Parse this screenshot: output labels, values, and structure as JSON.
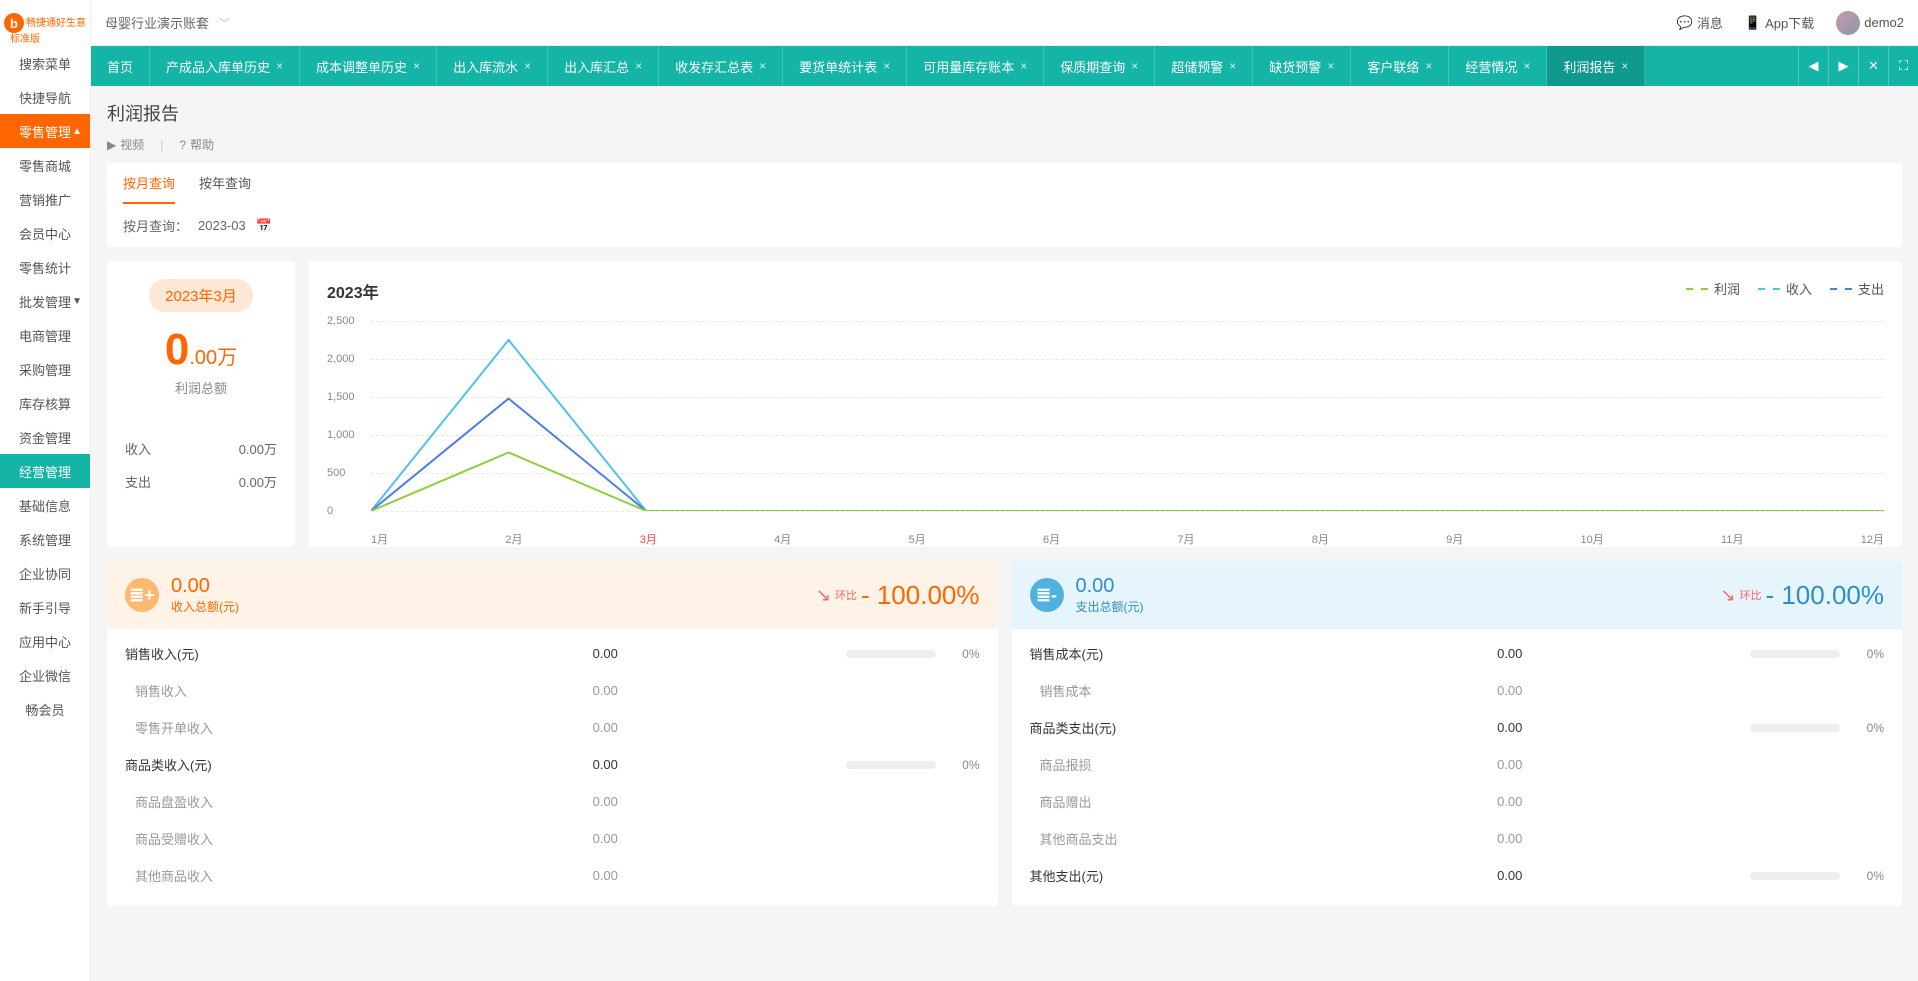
{
  "app": {
    "logo_text": "畅捷通好生意",
    "logo_edition": "标准版",
    "account_selector": "母婴行业演示账套"
  },
  "topbar": {
    "message": "消息",
    "app_download": "App下载",
    "username": "demo2"
  },
  "sidebar": {
    "items": [
      {
        "label": "搜索菜单",
        "name": "side-search"
      },
      {
        "label": "快捷导航",
        "name": "side-quick-nav"
      },
      {
        "label": "零售管理",
        "name": "side-retail",
        "active": true,
        "caret": "▲"
      },
      {
        "label": "零售商城",
        "name": "side-retail-mall",
        "indent": true
      },
      {
        "label": "营销推广",
        "name": "side-marketing",
        "indent": true
      },
      {
        "label": "会员中心",
        "name": "side-member",
        "indent": true
      },
      {
        "label": "零售统计",
        "name": "side-retail-stats",
        "indent": true
      },
      {
        "label": "批发管理",
        "name": "side-wholesale",
        "caret": "▼"
      },
      {
        "label": "电商管理",
        "name": "side-ecommerce"
      },
      {
        "label": "采购管理",
        "name": "side-purchase"
      },
      {
        "label": "库存核算",
        "name": "side-inventory"
      },
      {
        "label": "资金管理",
        "name": "side-funds"
      },
      {
        "label": "经营管理",
        "name": "side-ops",
        "selected": true
      },
      {
        "label": "基础信息",
        "name": "side-basics"
      },
      {
        "label": "系统管理",
        "name": "side-system"
      },
      {
        "label": "企业协同",
        "name": "side-collab"
      },
      {
        "label": "新手引导",
        "name": "side-guide"
      },
      {
        "label": "应用中心",
        "name": "side-apps"
      },
      {
        "label": "企业微信",
        "name": "side-wechat"
      },
      {
        "label": "畅会员",
        "name": "side-vip"
      }
    ]
  },
  "tabs": [
    {
      "label": "首页",
      "closable": false
    },
    {
      "label": "产成品入库单历史",
      "closable": true
    },
    {
      "label": "成本调整单历史",
      "closable": true
    },
    {
      "label": "出入库流水",
      "closable": true
    },
    {
      "label": "出入库汇总",
      "closable": true
    },
    {
      "label": "收发存汇总表",
      "closable": true
    },
    {
      "label": "要货单统计表",
      "closable": true
    },
    {
      "label": "可用量库存账本",
      "closable": true
    },
    {
      "label": "保质期查询",
      "closable": true
    },
    {
      "label": "超储预警",
      "closable": true
    },
    {
      "label": "缺货预警",
      "closable": true
    },
    {
      "label": "客户联络",
      "closable": true
    },
    {
      "label": "经营情况",
      "closable": true
    },
    {
      "label": "利润报告",
      "closable": true,
      "active": true
    }
  ],
  "page": {
    "title": "利润报告",
    "help_video": "视频",
    "help_text": "帮助",
    "filter_tabs": {
      "by_month": "按月查询",
      "by_year": "按年查询"
    },
    "filter_label": "按月查询：",
    "filter_value": "2023-03"
  },
  "summary": {
    "period_label": "2023年3月",
    "big_int": "0",
    "big_dec": ".00",
    "big_unit": "万",
    "big_label": "利润总额",
    "income_label": "收入",
    "income_val": "0.00万",
    "expense_label": "支出",
    "expense_val": "0.00万"
  },
  "chart": {
    "title": "2023年",
    "legend": {
      "profit": "利润",
      "income": "收入",
      "expense": "支出"
    },
    "colors": {
      "profit": "#8fce3f",
      "income": "#4fc2e8",
      "expense": "#4f7de8"
    },
    "y": {
      "min": 0,
      "max": 2500,
      "ticks": [
        "0",
        "500",
        "1,000",
        "1,500",
        "2,000",
        "2,500"
      ]
    },
    "x_labels": [
      "1月",
      "2月",
      "3月",
      "4月",
      "5月",
      "6月",
      "7月",
      "8月",
      "9月",
      "10月",
      "11月",
      "12月"
    ],
    "current_x_index": 2,
    "series": {
      "income": [
        0,
        2250,
        0,
        0,
        0,
        0,
        0,
        0,
        0,
        0,
        0,
        0
      ],
      "expense": [
        0,
        1480,
        0,
        0,
        0,
        0,
        0,
        0,
        0,
        0,
        0,
        0
      ],
      "profit": [
        0,
        770,
        0,
        0,
        0,
        0,
        0,
        0,
        0,
        0,
        0,
        0
      ]
    }
  },
  "breakdown": {
    "income": {
      "value": "0.00",
      "label": "收入总额(元)",
      "trend_label": "环比",
      "trend_pct": "- 100.00%",
      "rows": [
        {
          "label": "销售收入(元)",
          "val": "0.00",
          "pct": "0%",
          "sub": false
        },
        {
          "label": "销售收入",
          "val": "0.00",
          "sub": true
        },
        {
          "label": "零售开单收入",
          "val": "0.00",
          "sub": true
        },
        {
          "label": "商品类收入(元)",
          "val": "0.00",
          "pct": "0%",
          "sub": false
        },
        {
          "label": "商品盘盈收入",
          "val": "0.00",
          "sub": true
        },
        {
          "label": "商品受赠收入",
          "val": "0.00",
          "sub": true
        },
        {
          "label": "其他商品收入",
          "val": "0.00",
          "sub": true
        }
      ]
    },
    "expense": {
      "value": "0.00",
      "label": "支出总额(元)",
      "trend_label": "环比",
      "trend_pct": "- 100.00%",
      "rows": [
        {
          "label": "销售成本(元)",
          "val": "0.00",
          "pct": "0%",
          "sub": false
        },
        {
          "label": "销售成本",
          "val": "0.00",
          "sub": true
        },
        {
          "label": "商品类支出(元)",
          "val": "0.00",
          "pct": "0%",
          "sub": false
        },
        {
          "label": "商品报损",
          "val": "0.00",
          "sub": true
        },
        {
          "label": "商品赠出",
          "val": "0.00",
          "sub": true
        },
        {
          "label": "其他商品支出",
          "val": "0.00",
          "sub": true
        },
        {
          "label": "其他支出(元)",
          "val": "0.00",
          "pct": "0%",
          "sub": false
        }
      ]
    }
  }
}
